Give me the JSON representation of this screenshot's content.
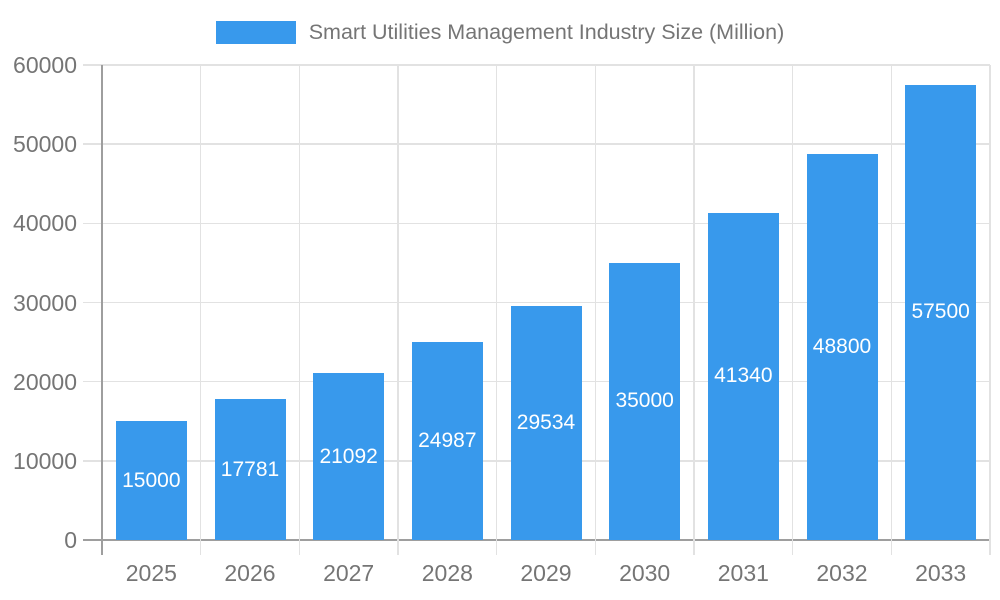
{
  "chart_data": {
    "type": "bar",
    "title": "Smart Utilities Management Industry Size (Million)",
    "categories": [
      "2025",
      "2026",
      "2027",
      "2028",
      "2029",
      "2030",
      "2031",
      "2032",
      "2033"
    ],
    "values": [
      15000,
      17781,
      21092,
      24987,
      29534,
      35000,
      41340,
      48800,
      57500
    ],
    "xlabel": "",
    "ylabel": "",
    "ylim": [
      0,
      60000
    ],
    "ytick_step": 10000,
    "ytick_labels": [
      "0",
      "10000",
      "20000",
      "30000",
      "40000",
      "50000",
      "60000"
    ],
    "grid": "on",
    "legend_position": "top",
    "value_label_position": "inside-center",
    "colors": {
      "bar": "#3899ec",
      "value_label": "#ffffff",
      "axis_text": "#757575",
      "gridline": "#e2e2e2",
      "axis_line": "#9e9e9e",
      "background": "#ffffff"
    }
  }
}
